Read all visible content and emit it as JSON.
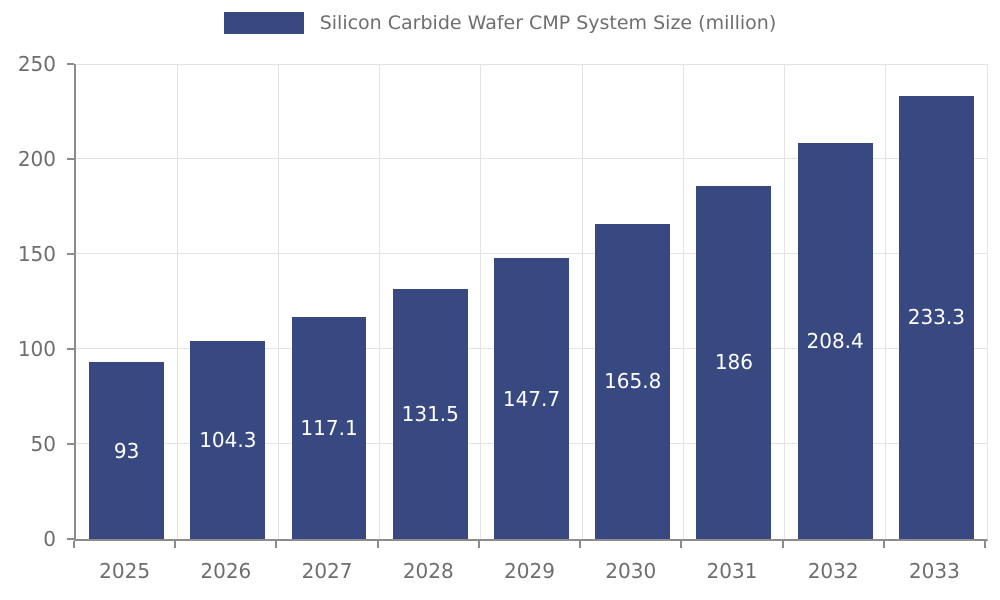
{
  "legend": {
    "label": "Silicon Carbide Wafer CMP System Size (million)"
  },
  "chart_data": {
    "type": "bar",
    "title": "Silicon Carbide Wafer CMP System Size (million)",
    "categories": [
      "2025",
      "2026",
      "2027",
      "2028",
      "2029",
      "2030",
      "2031",
      "2032",
      "2033"
    ],
    "values": [
      93,
      104.3,
      117.1,
      131.5,
      147.7,
      165.8,
      186,
      208.4,
      233.3
    ],
    "bar_labels": [
      "93",
      "104.3",
      "117.1",
      "131.5",
      "147.7",
      "165.8",
      "186",
      "208.4",
      "233.3"
    ],
    "xlabel": "",
    "ylabel": "",
    "ylim": [
      0,
      250
    ],
    "yticks": [
      0,
      50,
      100,
      150,
      200,
      250
    ],
    "grid": true,
    "legend_position": "top-center",
    "bar_color": "#384982",
    "bar_label_color": "#ffffff",
    "axis_text_color": "#6e6e6e",
    "spine_color": "#8c8c8c",
    "grid_color": "#e3e3e3",
    "background_color": "#ffffff"
  }
}
